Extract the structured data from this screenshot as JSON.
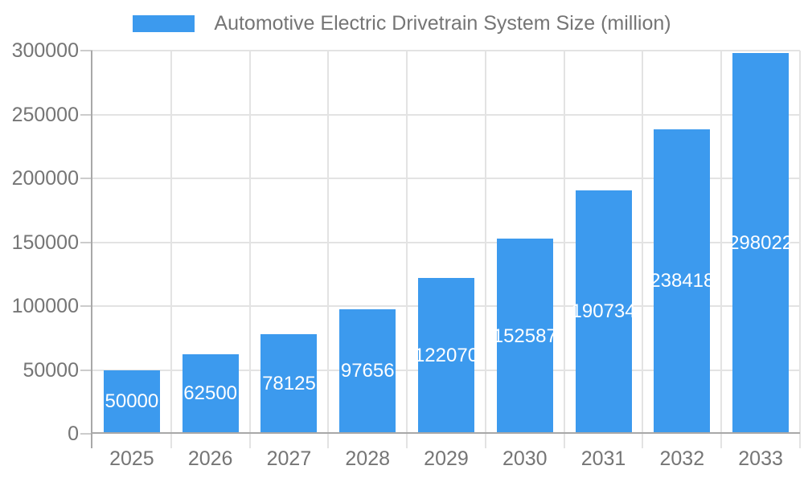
{
  "legend": {
    "label": "Automotive Electric Drivetrain System Size (million)"
  },
  "chart_data": {
    "type": "bar",
    "title": "Automotive Electric Drivetrain System Size (million)",
    "series_name": "Automotive Electric Drivetrain System Size (million)",
    "categories": [
      "2025",
      "2026",
      "2027",
      "2028",
      "2029",
      "2030",
      "2031",
      "2032",
      "2033"
    ],
    "values": [
      50000,
      62500,
      78125,
      97656,
      122070,
      152587,
      190734,
      238418,
      298022
    ],
    "data_labels": [
      "50000",
      "62500",
      "78125",
      "97656",
      "122070",
      "152587",
      "190734",
      "238418",
      "298022"
    ],
    "y_ticks": [
      0,
      50000,
      100000,
      150000,
      200000,
      250000,
      300000
    ],
    "y_tick_labels": [
      "0",
      "50000",
      "100000",
      "150000",
      "200000",
      "250000",
      "300000"
    ],
    "ylim": [
      0,
      300000
    ],
    "xlabel": "",
    "ylabel": "",
    "grid": "both",
    "legend_position": "top-center",
    "data_label_position": "inside-center-white"
  },
  "colors": {
    "bar": "#3C9AEE",
    "axis_text": "#757575",
    "bar_label_text": "#ffffff",
    "gridline": "#e3e3e3",
    "axis_line": "#a8a8a8",
    "background": "#ffffff"
  }
}
